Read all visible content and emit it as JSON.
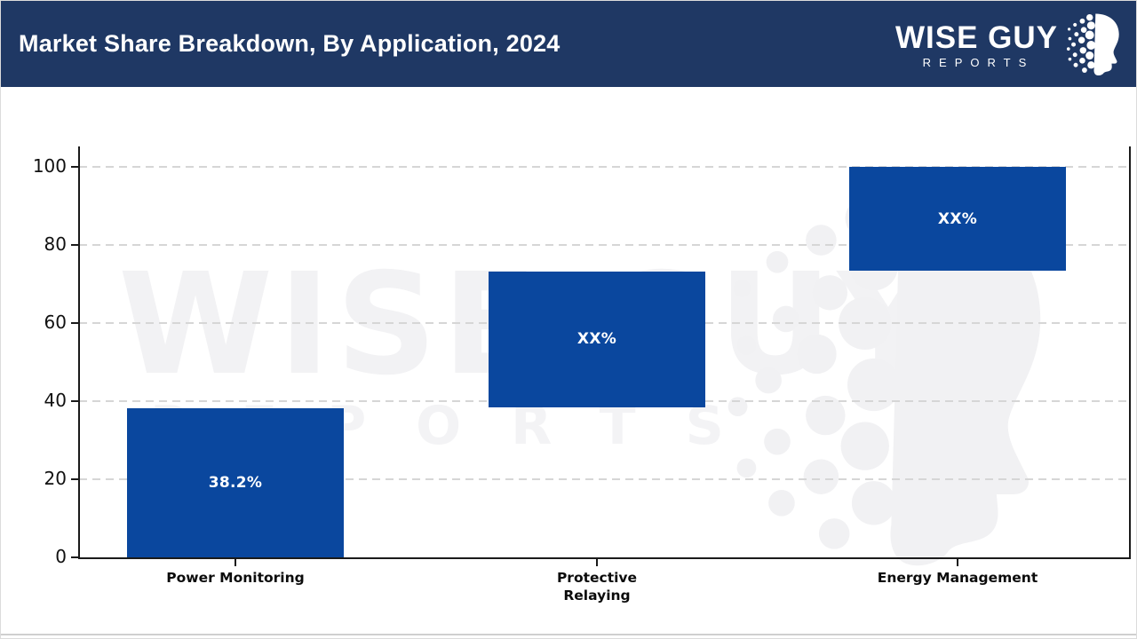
{
  "header": {
    "title": "Market Share Breakdown, By Application, 2024"
  },
  "logo": {
    "line1": "WISE GUY",
    "line2": "REPORTS"
  },
  "watermark": {
    "line1": "WISE GUY",
    "line2": "REPORTS"
  },
  "chart_data": {
    "type": "bar",
    "variant": "waterfall",
    "title": "Market Share Breakdown, By Application, 2024",
    "categories": [
      "Power Monitoring",
      "Protective Relaying",
      "Energy Management"
    ],
    "category_labels": [
      "Power Monitoring",
      "Protective\nRelaying",
      "Energy Management"
    ],
    "segments": [
      {
        "category": "Power Monitoring",
        "start": 0,
        "end": 38.2,
        "label": "38.2%"
      },
      {
        "category": "Protective Relaying",
        "start": 38.4,
        "end": 73.2,
        "label": "XX%"
      },
      {
        "category": "Energy Management",
        "start": 73.4,
        "end": 100,
        "label": "XX%"
      }
    ],
    "values": [
      38.2,
      34.8,
      26.6
    ],
    "yticks": [
      0,
      20,
      40,
      60,
      80,
      100
    ],
    "ylim": [
      0,
      100
    ],
    "xlabel": "",
    "ylabel": "",
    "grid": "horizontal-dashed",
    "legend": "none",
    "bar_color": "#0A479E",
    "background_color": "#ffffff",
    "header_color": "#1F3864"
  }
}
